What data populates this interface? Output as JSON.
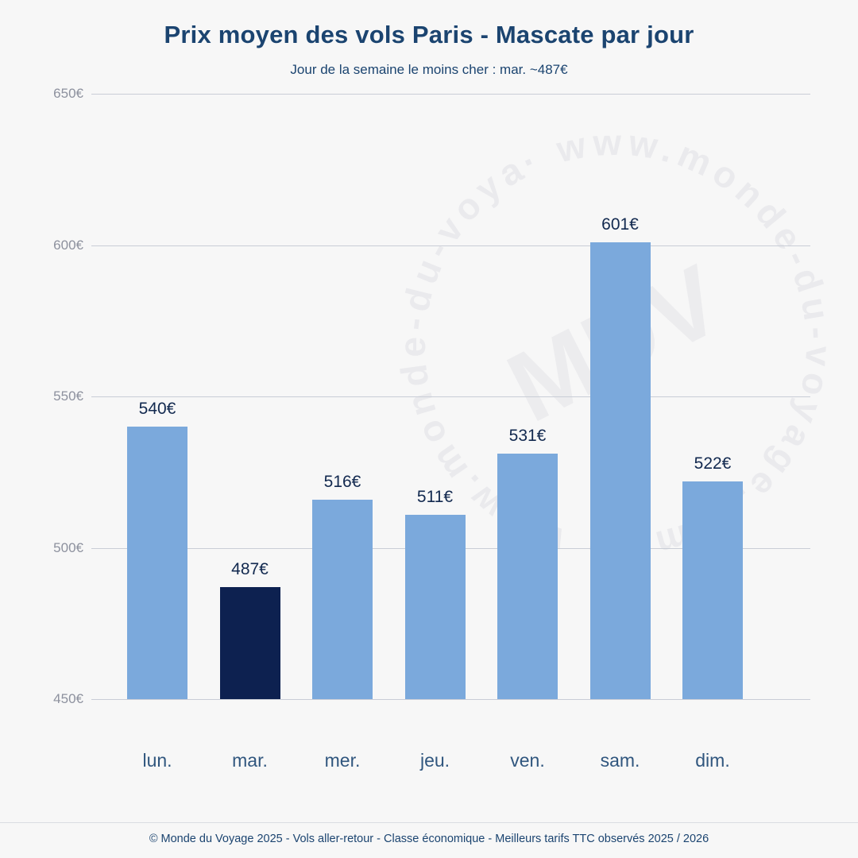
{
  "chart_data": {
    "type": "bar",
    "title": "Prix moyen des vols Paris - Mascate par jour",
    "subtitle": "Jour de la semaine le moins cher : mar. ~487€",
    "categories": [
      "lun.",
      "mar.",
      "mer.",
      "jeu.",
      "ven.",
      "sam.",
      "dim."
    ],
    "values": [
      540,
      487,
      516,
      511,
      531,
      601,
      522
    ],
    "value_labels": [
      "540€",
      "487€",
      "516€",
      "511€",
      "531€",
      "601€",
      "522€"
    ],
    "ylim": [
      450,
      650
    ],
    "yticks": [
      450,
      500,
      550,
      600,
      650
    ],
    "ytick_labels": [
      "450€",
      "500€",
      "550€",
      "600€",
      "650€"
    ],
    "grid": true,
    "legend": "none",
    "highlight_index": 1,
    "colors": {
      "bar": "#7ba9dc",
      "highlight_bar": "#0d2150",
      "title": "#1b4470",
      "value_label": "#12294f",
      "x_label": "#30567e",
      "y_label": "#8d919e",
      "gridline": "#c9cdd6",
      "background": "#f7f7f7"
    }
  },
  "watermark": {
    "ring_text": "· www.monde-du-voyage.com · · www.monde-du-voyage.com",
    "center_text": "MDV"
  },
  "footer": {
    "text": "© Monde du Voyage 2025 - Vols aller-retour - Classe économique - Meilleurs tarifs TTC observés 2025 / 2026"
  }
}
